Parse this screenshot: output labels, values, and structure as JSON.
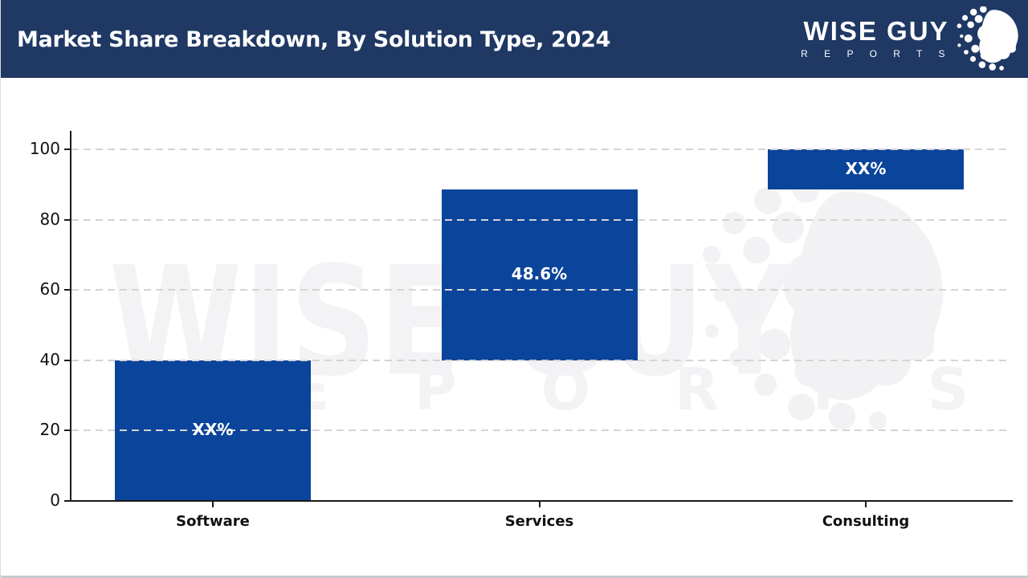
{
  "header": {
    "title": "Market Share Breakdown, By Solution Type, 2024",
    "bg_color": "#1f3864",
    "logo": {
      "line1": "WISE GUY",
      "line2": "R E P O R T S"
    }
  },
  "watermark": {
    "line1": "WISE GUY",
    "line2": "R E P O R T S"
  },
  "chart_data": {
    "type": "bar",
    "subtype": "waterfall",
    "title": "Market Share Breakdown, By Solution Type, 2024",
    "categories": [
      "Software",
      "Services",
      "Consulting"
    ],
    "segments": [
      {
        "category": "Software",
        "start": 0,
        "end": 40,
        "label": "XX%"
      },
      {
        "category": "Services",
        "start": 40,
        "end": 88.6,
        "label": "48.6%"
      },
      {
        "category": "Consulting",
        "start": 88.6,
        "end": 100,
        "label": "XX%"
      }
    ],
    "y_ticks": [
      0,
      20,
      40,
      60,
      80,
      100
    ],
    "ylim": [
      0,
      105
    ],
    "xlabel": "",
    "ylabel": "",
    "grid": "horizontal-dashed",
    "legend": "none",
    "bar_color": "#0a449b",
    "bar_label_color": "#ffffff",
    "grid_color": "#d4d4d4",
    "axis_color": "#1a1a1a"
  }
}
